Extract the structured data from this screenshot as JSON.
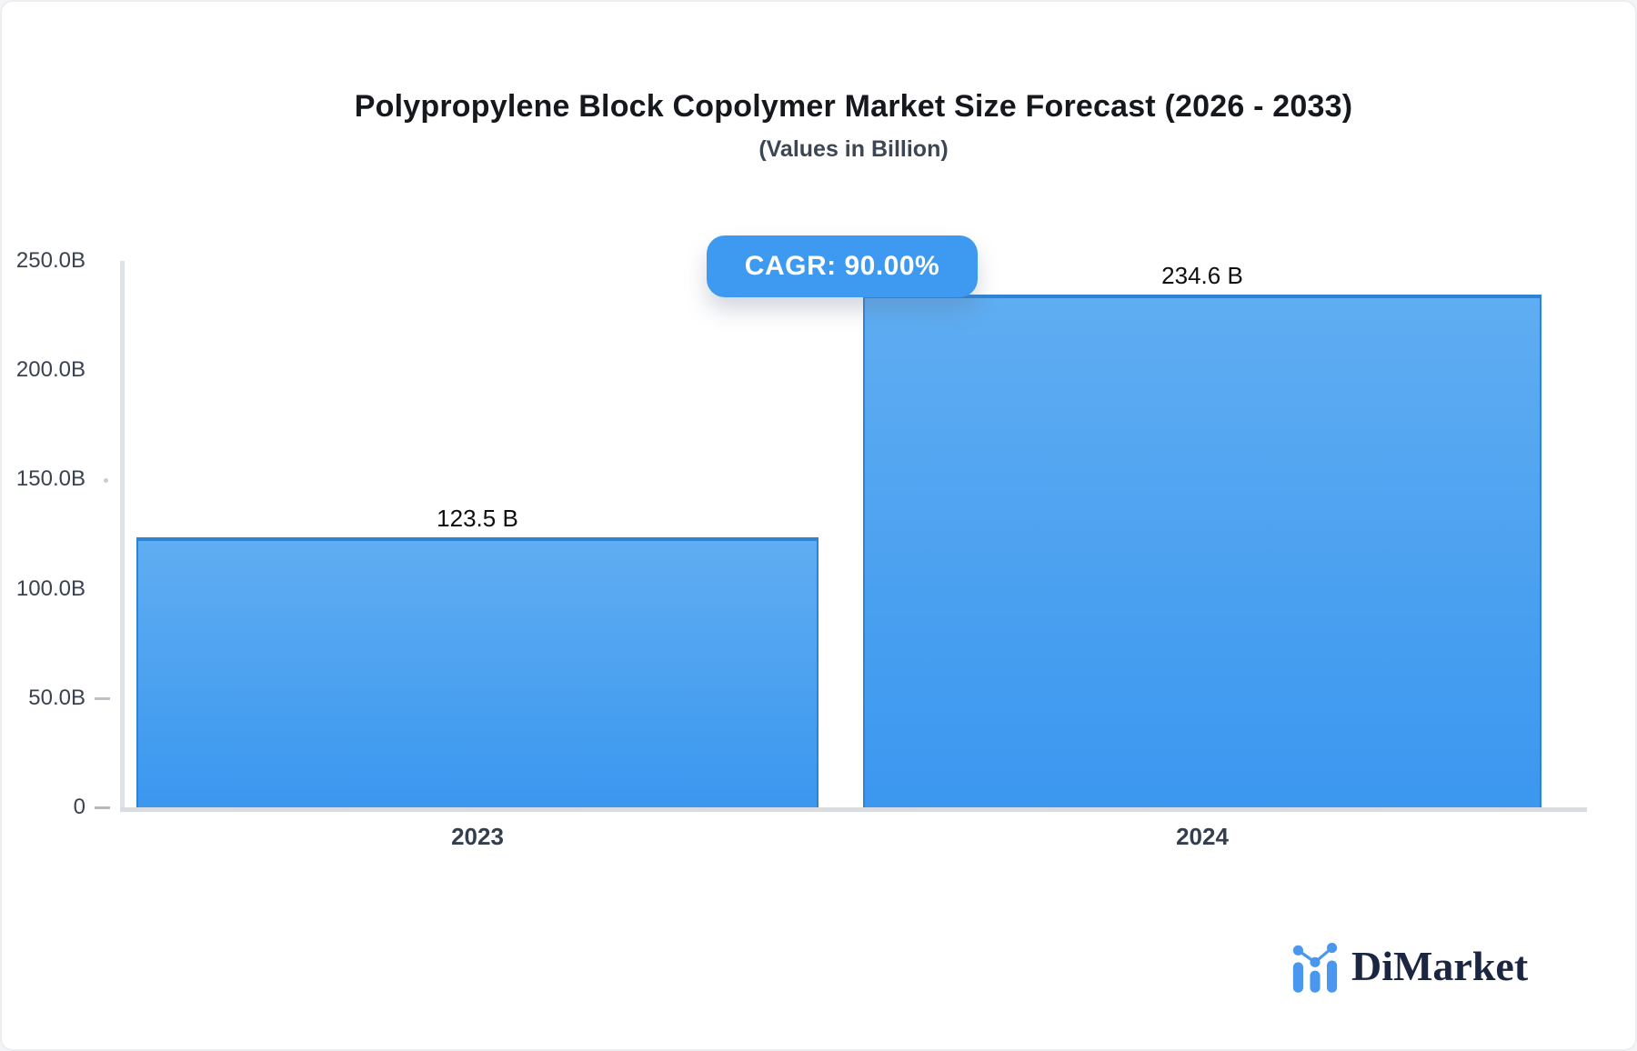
{
  "title": "Polypropylene Block Copolymer Market Size Forecast (2026 - 2033)",
  "subtitle": "(Values in Billion)",
  "badge": {
    "label": "CAGR: 90.00%",
    "color": "#3e9af0"
  },
  "chart_data": {
    "type": "bar",
    "title": "Polypropylene Block Copolymer Market Size Forecast (2026 - 2033)",
    "subtitle": "(Values in Billion)",
    "unit": "Billion",
    "categories": [
      "2023",
      "2024"
    ],
    "values": [
      123.5,
      234.6
    ],
    "value_labels": [
      "123.5 B",
      "234.6 B"
    ],
    "cagr_percent": 90.0,
    "xlabel": "",
    "ylabel": "",
    "ylim": [
      0,
      250
    ],
    "y_tick_labels": [
      "250.0B",
      "200.0B",
      "150.0B",
      "100.0B",
      "50.0B",
      "0"
    ],
    "y_tick_values": [
      250,
      200,
      150,
      100,
      50,
      0
    ],
    "grid": false,
    "legend": false,
    "bar_color_top": "#5fadf2",
    "bar_color_bottom": "#3b97ef",
    "bar_border_color": "#2e84d4"
  },
  "logo": {
    "brand": "DiMarket",
    "icon": "bar-chart-logo-icon",
    "text_color": "#1a2642",
    "accent_color": "#4a97ef"
  }
}
